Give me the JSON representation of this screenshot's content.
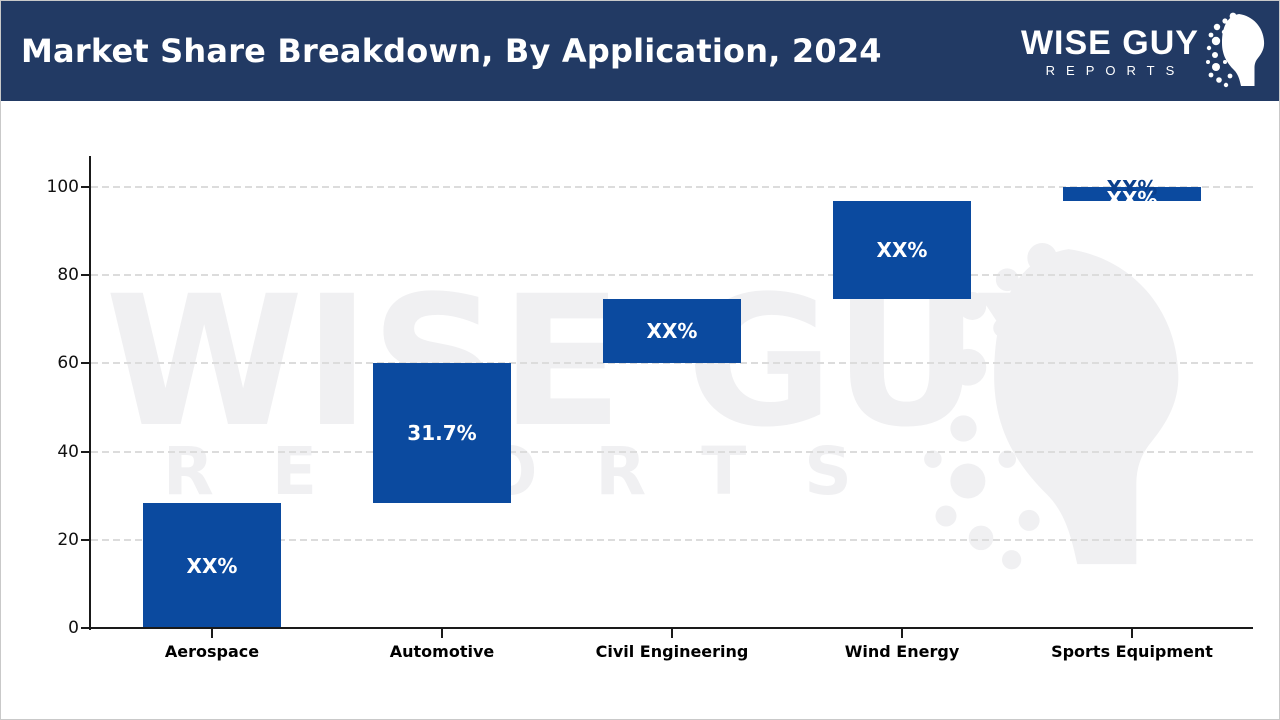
{
  "header": {
    "title": "Market Share Breakdown, By Application, 2024",
    "logo": {
      "line1": "WISE GUY",
      "line2": "REPORTS"
    }
  },
  "watermark": {
    "line1": "WISE GUY",
    "line2": "REPORTS"
  },
  "chart_data": {
    "type": "bar",
    "subtype": "waterfall",
    "title": "Market Share Breakdown, By Application, 2024",
    "categories": [
      "Aerospace",
      "Automotive",
      "Civil Engineering",
      "Wind Energy",
      "Sports Equipment"
    ],
    "segments": [
      {
        "category": "Aerospace",
        "label": "XX%",
        "start": 0,
        "end": 28.3
      },
      {
        "category": "Automotive",
        "label": "31.7%",
        "start": 28.3,
        "end": 60.0
      },
      {
        "category": "Civil Engineering",
        "label": "XX%",
        "start": 60.0,
        "end": 74.5
      },
      {
        "category": "Wind Energy",
        "label": "XX%",
        "start": 74.5,
        "end": 96.8
      },
      {
        "category": "Sports Equipment",
        "label": "XX%",
        "start": 96.8,
        "end": 100.0
      }
    ],
    "yticks": [
      0,
      20,
      40,
      60,
      80,
      100
    ],
    "ylim": [
      0,
      107
    ],
    "xlabel": "",
    "ylabel": "",
    "grid": "horizontal-dashed",
    "legend_position": "none"
  },
  "colors": {
    "header_bg": "#223A64",
    "bar": "#0B4A9F",
    "bar_label_dark": "#0A3F8C",
    "watermark": "#F0F0F2",
    "gridline": "#DCDCDC",
    "axis": "#1A1A1A",
    "title_text": "#FFFFFF"
  }
}
